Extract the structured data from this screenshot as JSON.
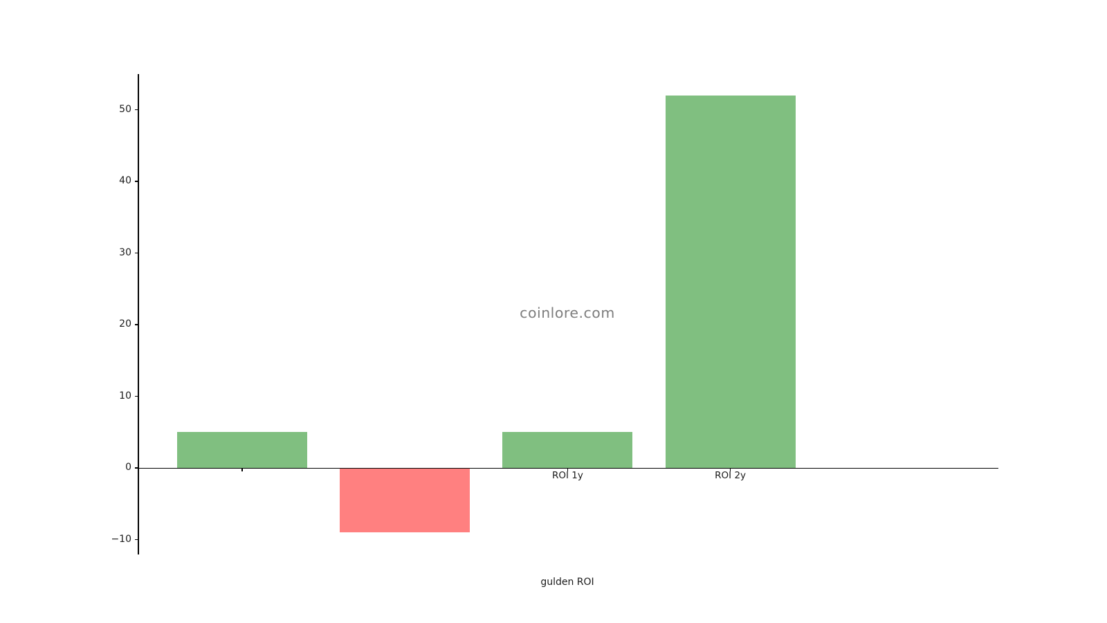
{
  "page": {
    "background_color": "#ffffff"
  },
  "watermark": {
    "text": "coinlore.com",
    "color": "#7d7d7d"
  },
  "chart_data": {
    "type": "bar",
    "title": "",
    "xlabel": "gulden ROI",
    "ylabel": "",
    "categories": [
      "",
      "",
      "ROI 1y",
      "ROI 2y"
    ],
    "values": [
      5,
      -9,
      5,
      52
    ],
    "series": [
      {
        "name": "gulden ROI",
        "values": [
          5,
          -9,
          5,
          52
        ]
      }
    ],
    "bar_colors": [
      "#80bf80",
      "#ff8080",
      "#80bf80",
      "#80bf80"
    ],
    "positive_color": "#80bf80",
    "negative_color": "#ff8080",
    "yticks": [
      -10,
      0,
      10,
      20,
      30,
      40,
      50
    ],
    "ylim": [
      -12.1,
      55
    ],
    "grid": false,
    "legend": null,
    "axis_color": "#000000",
    "tick_label_color": "#1a1a1a"
  }
}
